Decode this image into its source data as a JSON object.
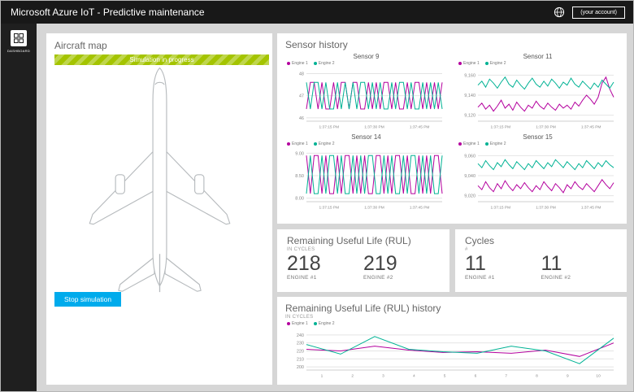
{
  "topbar": {
    "title": "Microsoft Azure IoT - Predictive maintenance",
    "account": "(your account)"
  },
  "sidebar": {
    "dashboard_label": "DASHBOARD"
  },
  "colors": {
    "engine1": "#b4009e",
    "engine2": "#00b294",
    "banner_green": "#a4c400",
    "button_blue": "#00abec"
  },
  "legend": {
    "engine1": "Engine 1",
    "engine2": "Engine 2"
  },
  "aircraft_map": {
    "title": "Aircraft map",
    "banner": "Simulation in progress",
    "stop_button": "Stop simulation"
  },
  "sensor_history": {
    "title": "Sensor history"
  },
  "rul": {
    "title": "Remaining Useful Life (RUL)",
    "unit": "IN CYCLES",
    "engines": [
      {
        "value": "218",
        "label": "ENGINE #1"
      },
      {
        "value": "219",
        "label": "ENGINE #2"
      }
    ]
  },
  "cycles": {
    "title": "Cycles",
    "unit": "#",
    "engines": [
      {
        "value": "11",
        "label": "ENGINE #1"
      },
      {
        "value": "11",
        "label": "ENGINE #2"
      }
    ]
  },
  "rul_history": {
    "title": "Remaining Useful Life (RUL) history",
    "unit": "IN CYCLES"
  },
  "chart_data": [
    {
      "type": "line",
      "title": "Sensor 9",
      "x_labels": [
        "1:37:15 PM",
        "1:37:30 PM",
        "1:37:45 PM"
      ],
      "y_ticks": [
        "48",
        "47",
        "46"
      ],
      "ylim": [
        45.85,
        48.2
      ],
      "series": [
        {
          "name": "Engine 1",
          "color": "#b4009e",
          "values": [
            46.4,
            47.6,
            47.6,
            46.4,
            47.6,
            46.4,
            46.4,
            47.6,
            46.4,
            47.6,
            47.6,
            46.4,
            47.6,
            47.6,
            46.4,
            46.4,
            47.6,
            46.4,
            47.6,
            46.4,
            47.6,
            47.6,
            46.4,
            47.6,
            46.4,
            46.4,
            47.6,
            46.4,
            47.6,
            47.6,
            46.4,
            47.6,
            46.4,
            47.6,
            46.4,
            47.6
          ]
        },
        {
          "name": "Engine 2",
          "color": "#00b294",
          "values": [
            47.6,
            46.4,
            47.6,
            47.6,
            46.4,
            47.6,
            46.4,
            46.4,
            47.6,
            46.4,
            47.6,
            46.4,
            47.6,
            46.4,
            47.6,
            47.6,
            46.4,
            47.6,
            46.4,
            47.6,
            46.4,
            46.4,
            47.6,
            46.4,
            47.6,
            47.6,
            46.4,
            47.6,
            46.4,
            46.4,
            47.6,
            46.4,
            47.6,
            46.4,
            47.6,
            46.4
          ]
        }
      ]
    },
    {
      "type": "line",
      "title": "Sensor 11",
      "x_labels": [
        "1:37:15 PM",
        "1:37:30 PM",
        "1:37:45 PM"
      ],
      "y_ticks": [
        "9,160",
        "9,140",
        "9,120"
      ],
      "ylim": [
        9114,
        9166
      ],
      "series": [
        {
          "name": "Engine 1",
          "color": "#b4009e",
          "values": [
            9128,
            9132,
            9126,
            9130,
            9124,
            9129,
            9135,
            9127,
            9131,
            9125,
            9133,
            9128,
            9124,
            9130,
            9127,
            9134,
            9129,
            9126,
            9132,
            9128,
            9125,
            9131,
            9127,
            9130,
            9126,
            9133,
            9129,
            9135,
            9140,
            9136,
            9131,
            9138,
            9152,
            9158,
            9146,
            9138
          ]
        },
        {
          "name": "Engine 2",
          "color": "#00b294",
          "values": [
            9150,
            9154,
            9148,
            9156,
            9152,
            9147,
            9153,
            9158,
            9151,
            9148,
            9155,
            9150,
            9146,
            9152,
            9157,
            9151,
            9148,
            9154,
            9149,
            9156,
            9152,
            9147,
            9153,
            9150,
            9157,
            9151,
            9148,
            9154,
            9150,
            9146,
            9152,
            9148,
            9155,
            9151,
            9147,
            9153
          ]
        }
      ]
    },
    {
      "type": "line",
      "title": "Sensor 14",
      "x_labels": [
        "1:37:15 PM",
        "1:37:30 PM",
        "1:37:45 PM"
      ],
      "y_ticks": [
        "9.00",
        "8.50",
        "8.00"
      ],
      "ylim": [
        7.92,
        9.08
      ],
      "series": [
        {
          "name": "Engine 1",
          "color": "#b4009e",
          "values": [
            8.95,
            8.1,
            8.95,
            8.95,
            8.1,
            8.95,
            8.1,
            8.1,
            8.95,
            8.1,
            8.95,
            8.95,
            8.1,
            8.95,
            8.1,
            8.95,
            8.1,
            8.1,
            8.95,
            8.95,
            8.1,
            8.95,
            8.1,
            8.95,
            8.95,
            8.1,
            8.95,
            8.1,
            8.1,
            8.95,
            8.1,
            8.95,
            8.1,
            8.95,
            8.95,
            8.1
          ]
        },
        {
          "name": "Engine 2",
          "color": "#00b294",
          "values": [
            8.1,
            8.95,
            8.1,
            8.1,
            8.95,
            8.1,
            8.95,
            8.95,
            8.1,
            8.95,
            8.1,
            8.1,
            8.95,
            8.1,
            8.95,
            8.1,
            8.95,
            8.95,
            8.1,
            8.1,
            8.95,
            8.1,
            8.95,
            8.1,
            8.1,
            8.95,
            8.1,
            8.95,
            8.95,
            8.1,
            8.95,
            8.1,
            8.95,
            8.1,
            8.1,
            8.95
          ]
        }
      ]
    },
    {
      "type": "line",
      "title": "Sensor 15",
      "x_labels": [
        "1:37:15 PM",
        "1:37:30 PM",
        "1:37:45 PM"
      ],
      "y_ticks": [
        "9,060",
        "9,040",
        "9,020"
      ],
      "ylim": [
        9014,
        9066
      ],
      "series": [
        {
          "name": "Engine 1",
          "color": "#b4009e",
          "values": [
            9030,
            9026,
            9034,
            9028,
            9024,
            9032,
            9027,
            9035,
            9029,
            9025,
            9031,
            9027,
            9033,
            9028,
            9024,
            9030,
            9026,
            9034,
            9029,
            9025,
            9032,
            9028,
            9023,
            9031,
            9027,
            9034,
            9029,
            9026,
            9032,
            9028,
            9024,
            9030,
            9036,
            9031,
            9027,
            9033
          ]
        },
        {
          "name": "Engine 2",
          "color": "#00b294",
          "values": [
            9052,
            9048,
            9055,
            9050,
            9046,
            9053,
            9049,
            9056,
            9051,
            9047,
            9054,
            9050,
            9046,
            9052,
            9048,
            9055,
            9051,
            9047,
            9053,
            9049,
            9056,
            9052,
            9048,
            9054,
            9050,
            9046,
            9052,
            9048,
            9055,
            9051,
            9047,
            9053,
            9049,
            9055,
            9051,
            9048
          ]
        }
      ]
    },
    {
      "type": "line",
      "title": "Remaining Useful Life (RUL) history",
      "x_labels": [
        "1",
        "2",
        "3",
        "4",
        "5",
        "6",
        "7",
        "8",
        "9",
        "10"
      ],
      "y_ticks": [
        "240",
        "230",
        "220",
        "210",
        "200"
      ],
      "ylim": [
        196,
        246
      ],
      "series": [
        {
          "name": "Engine 1",
          "color": "#b4009e",
          "values": [
            222,
            220,
            226,
            221,
            218,
            219,
            217,
            221,
            213,
            230
          ]
        },
        {
          "name": "Engine 2",
          "color": "#00b294",
          "values": [
            228,
            216,
            238,
            222,
            219,
            217,
            226,
            220,
            204,
            236
          ]
        }
      ]
    }
  ]
}
